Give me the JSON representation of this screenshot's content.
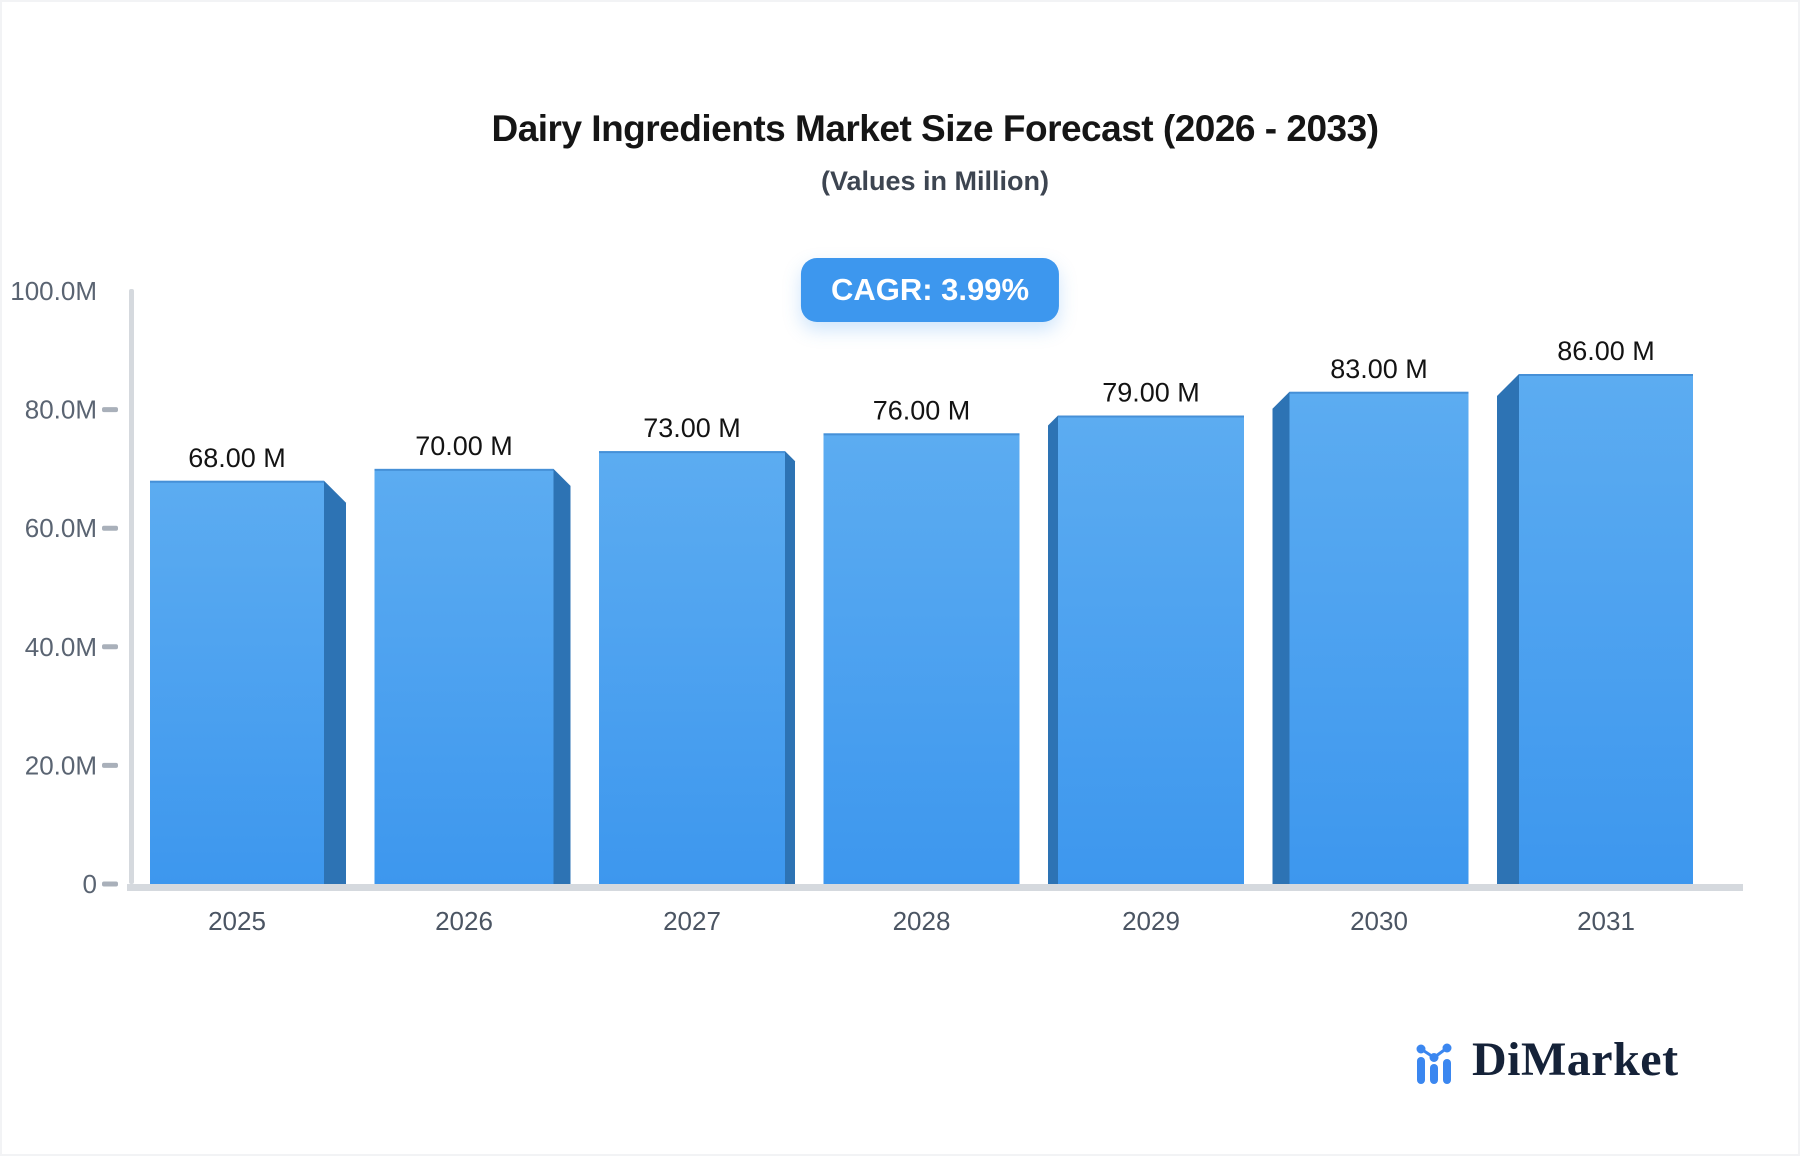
{
  "header": {
    "title": "Dairy Ingredients Market Size Forecast (2026 - 2033)",
    "subtitle": "(Values in Million)"
  },
  "badge": {
    "label": "CAGR: 3.99%"
  },
  "chart_data": {
    "type": "bar",
    "title": "Dairy Ingredients Market Size Forecast (2026 - 2033)",
    "subtitle": "(Values in Million)",
    "unit": "Million",
    "categories": [
      "2025",
      "2026",
      "2027",
      "2028",
      "2029",
      "2030",
      "2031"
    ],
    "values": [
      68,
      70,
      73,
      76,
      79,
      83,
      86
    ],
    "value_labels": [
      "68.00 M",
      "70.00 M",
      "73.00 M",
      "76.00 M",
      "79.00 M",
      "83.00 M",
      "86.00 M"
    ],
    "ylim": [
      0,
      100
    ],
    "y_ticks": {
      "values": [
        0,
        20,
        40,
        60,
        80,
        100
      ],
      "labels": [
        "0",
        "20.0M",
        "40.0M",
        "60.0M",
        "80.0M",
        "100.0M"
      ]
    },
    "grid": false,
    "legend": null,
    "style": "3d-perspective-blue-bars"
  },
  "colors": {
    "bar_face_top": "#5cacf1",
    "bar_face_bottom": "#3d97ee",
    "bar_top_edge": "#3f87cf",
    "bar_side": "#2d73b4",
    "axis_line": "#d5d9de",
    "tick_dash": "#a9b0ba",
    "y_label": "#5a6472",
    "x_label": "#4b5563",
    "value_label": "#131313",
    "badge_bg": "#3d97ee",
    "badge_text": "#ffffff",
    "logo_icon": "#3b87f0",
    "logo_text": "#152238"
  },
  "logo": {
    "text": "DiMarket",
    "icon": "bar-line-chart-icon"
  }
}
